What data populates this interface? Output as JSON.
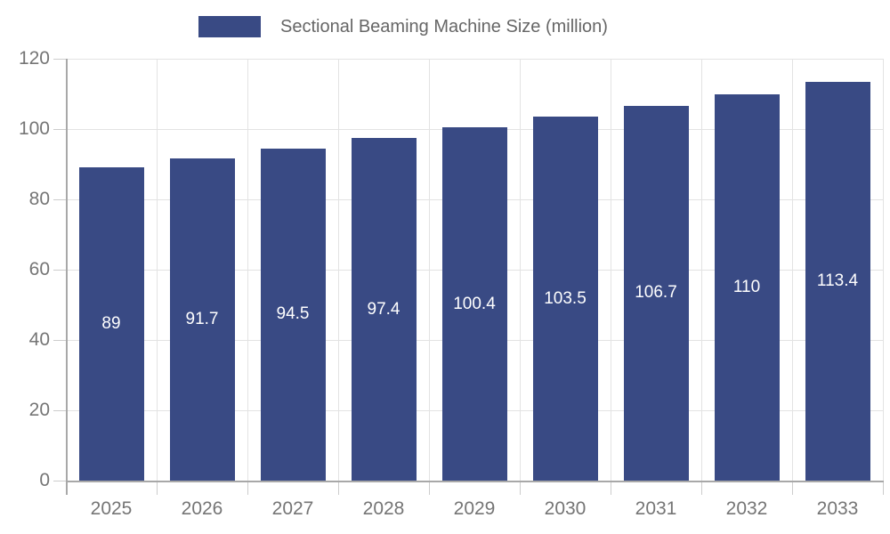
{
  "legend": {
    "label": "Sectional Beaming Machine Size (million)"
  },
  "colors": {
    "bar": "#394A84",
    "grid": "#e3e3e3",
    "axis": "#a8a8a8",
    "tick": "#cccccc",
    "tick_text": "#757575",
    "legend_text": "#666666",
    "bar_label_text": "#ffffff"
  },
  "chart_data": {
    "type": "bar",
    "title": "",
    "categories": [
      "2025",
      "2026",
      "2027",
      "2028",
      "2029",
      "2030",
      "2031",
      "2032",
      "2033"
    ],
    "series": [
      {
        "name": "Sectional Beaming Machine Size (million)",
        "values": [
          89,
          91.7,
          94.5,
          97.4,
          100.4,
          103.5,
          106.7,
          110,
          113.4
        ],
        "labels": [
          "89",
          "91.7",
          "94.5",
          "97.4",
          "100.4",
          "103.5",
          "106.7",
          "110",
          "113.4"
        ],
        "color": "#394A84"
      }
    ],
    "ylabel": "",
    "xlabel": "",
    "ylim": [
      0,
      120
    ],
    "yticks": [
      0,
      20,
      40,
      60,
      80,
      100,
      120
    ],
    "grid": true,
    "legend_position": "top",
    "value_labels": "inside-center"
  }
}
